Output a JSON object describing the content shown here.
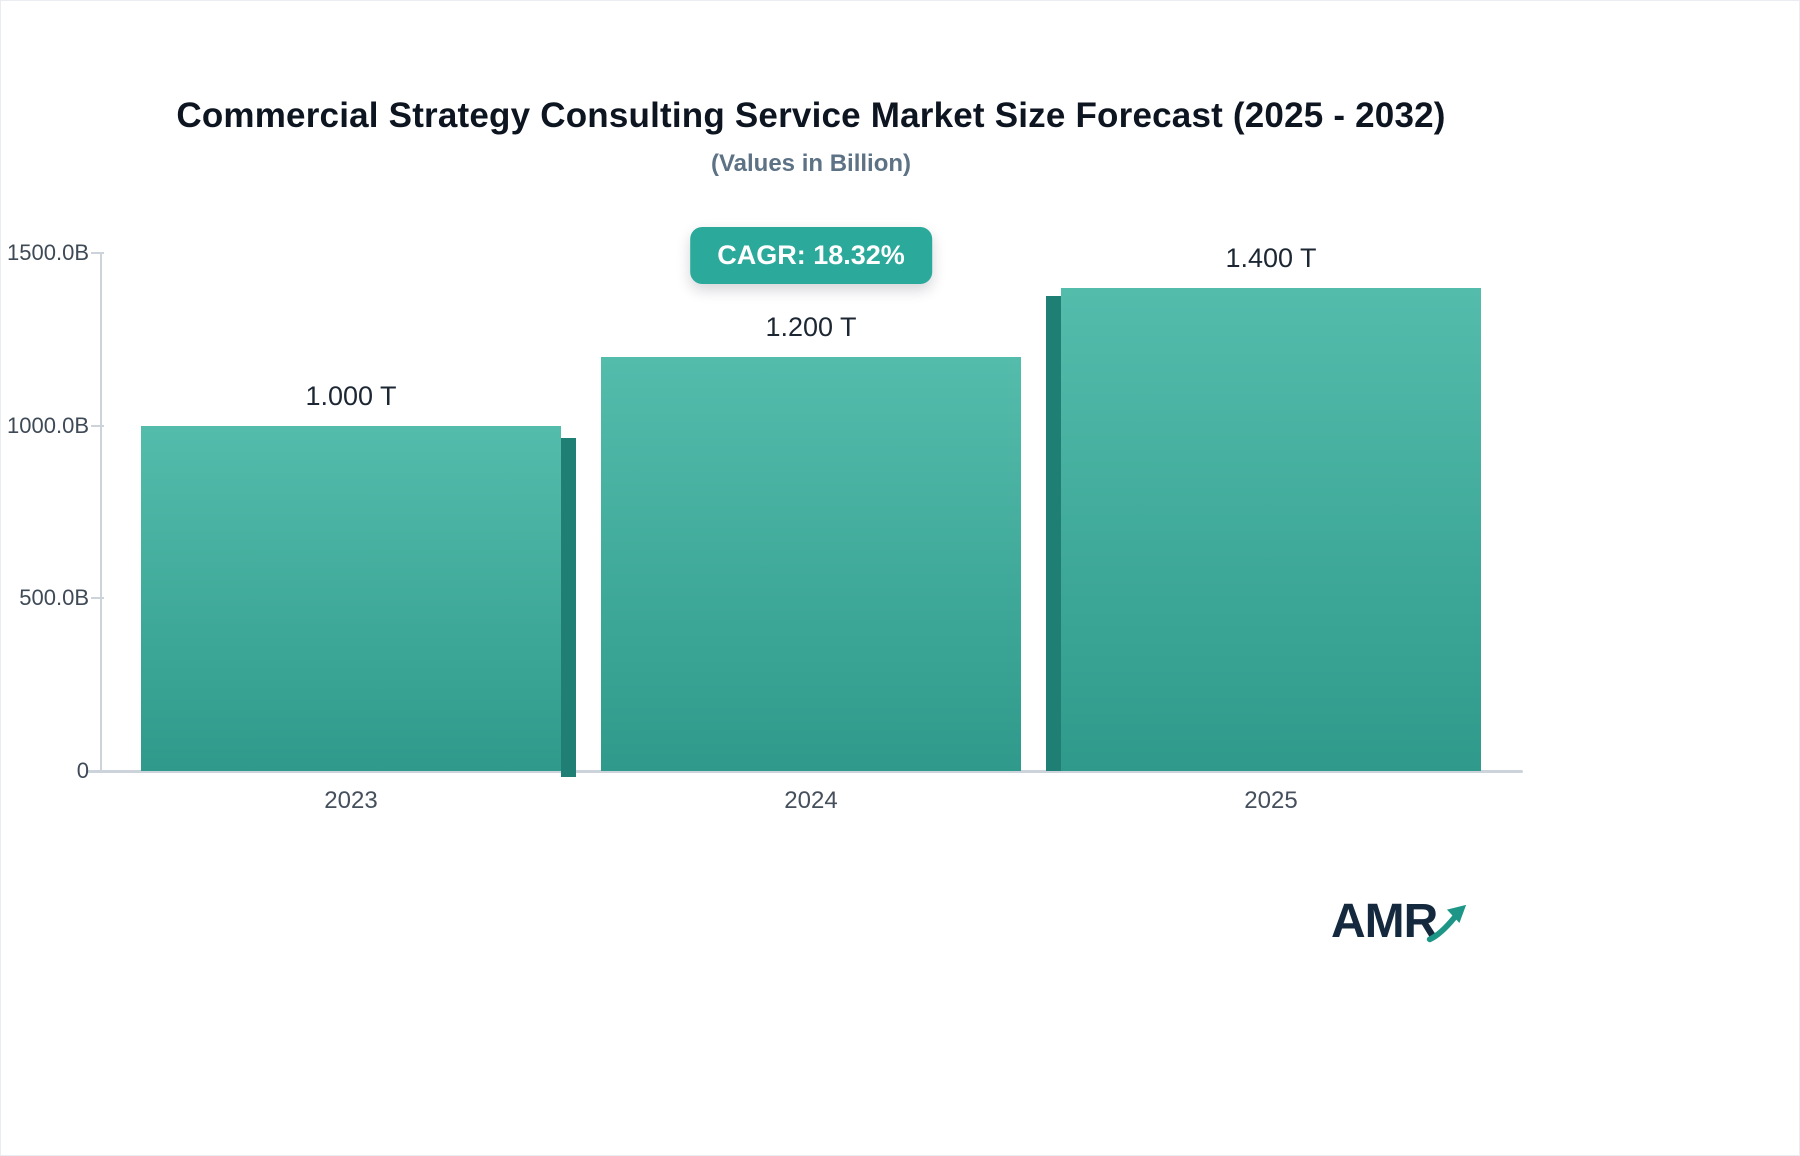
{
  "title": "Commercial Strategy Consulting Service Market Size Forecast (2025 - 2032)",
  "subtitle": "(Values in Billion)",
  "cagr_badge": "CAGR: 18.32%",
  "logo": {
    "text": "AMR",
    "arrow_icon": "trend-up-arrow"
  },
  "colors": {
    "accent": "#2ba99b",
    "title_text": "#0d1521",
    "subtitle_text": "#5d7285",
    "axis_line": "#ccd3da"
  },
  "chart_data": {
    "type": "bar",
    "title": "Commercial Strategy Consulting Service Market Size Forecast (2025 - 2032)",
    "subtitle": "(Values in Billion)",
    "annotation": "CAGR: 18.32%",
    "categories": [
      "2023",
      "2024",
      "2025"
    ],
    "values": [
      1000,
      1200,
      1400
    ],
    "value_labels": [
      "1.000 T",
      "1.200 T",
      "1.400 T"
    ],
    "unit": "Billion",
    "xlabel": "",
    "ylabel": "",
    "ylim": [
      0,
      1500
    ],
    "y_ticks": [
      {
        "label": "1500.0B",
        "value": 1500
      },
      {
        "label": "1000.0B",
        "value": 1000
      },
      {
        "label": "500.0B",
        "value": 500
      },
      {
        "label": "0",
        "value": 0
      }
    ],
    "grid": false,
    "legend": false,
    "bar_color_top": "#54bcab",
    "bar_color_bottom": "#2f9a8b",
    "bar_side_color": "#1f7f74"
  }
}
